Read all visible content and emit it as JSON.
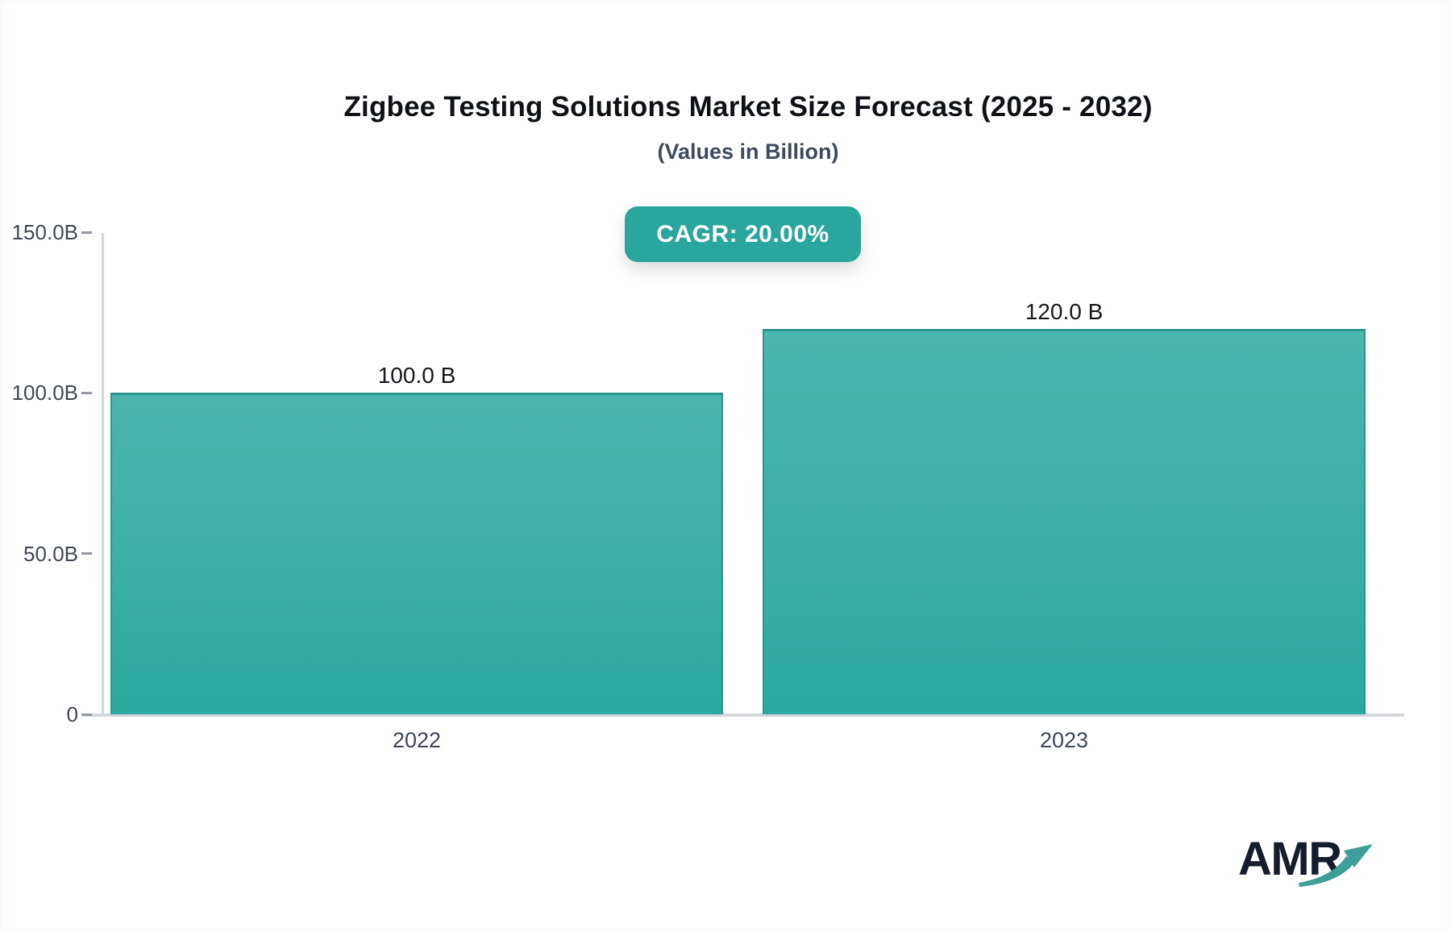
{
  "header": {
    "title": "Zigbee Testing Solutions Market Size Forecast (2025 - 2032)",
    "subtitle": "(Values in Billion)",
    "cagr_label": "CAGR: 20.00%"
  },
  "chart_data": {
    "type": "bar",
    "title": "Zigbee Testing Solutions Market Size Forecast (2025 - 2032)",
    "subtitle": "(Values in Billion)",
    "unit": "Billion",
    "cagr_pct": 20.0,
    "categories": [
      "2022",
      "2023"
    ],
    "values": [
      100.0,
      120.0
    ],
    "bar_labels": [
      "100.0 B",
      "120.0 B"
    ],
    "ylim": [
      0,
      150
    ],
    "y_ticks": [
      {
        "value": 150,
        "label": "150.0B"
      },
      {
        "value": 100,
        "label": "100.0B"
      },
      {
        "value": 50,
        "label": "50.0B"
      },
      {
        "value": 0,
        "label": "0"
      }
    ],
    "grid": false,
    "legend_position": "none"
  },
  "colors": {
    "bar_gradient_top": "#4db6ad",
    "bar_gradient_bottom": "#2ba89e",
    "bar_border": "#2b958d",
    "badge_background": "#2aa69c",
    "badge_text": "#ffffff",
    "axis_line": "#d3d6db",
    "tick_label_text": "#3f4756",
    "title_text": "#0e1116",
    "logo_navy": "#151c2c",
    "logo_teal": "#3d9f97"
  },
  "logo": {
    "text": "AMR",
    "icon": "trend-up-arrow-icon"
  }
}
